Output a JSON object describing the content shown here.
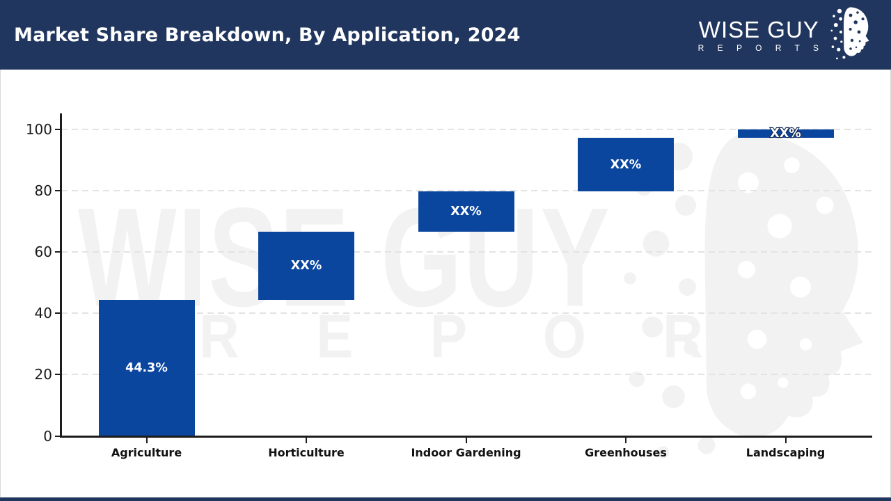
{
  "header": {
    "title": "Market Share Breakdown, By Application, 2024",
    "bg_color": "#20365f",
    "logo": {
      "line1": "WISE GUY",
      "line2": "R E P O R T S"
    }
  },
  "watermark": {
    "line1": "WISE GUY",
    "line2": "R E P O R T S"
  },
  "footer": {
    "bg_color": "#20365f"
  },
  "chart_data": {
    "type": "bar",
    "subtype": "stacked-waterfall",
    "title": "Market Share Breakdown, By Application, 2024",
    "xlabel": "",
    "ylabel": "",
    "categories": [
      "Agriculture",
      "Horticulture",
      "Indoor Gardening",
      "Greenhouses",
      "Landscaping"
    ],
    "segments": [
      {
        "category": "Agriculture",
        "start": 0,
        "end": 44.3,
        "label": "44.3%",
        "outlined": false
      },
      {
        "category": "Horticulture",
        "start": 44.3,
        "end": 66.6,
        "label": "XX%",
        "outlined": false
      },
      {
        "category": "Indoor Gardening",
        "start": 66.6,
        "end": 79.7,
        "label": "XX%",
        "outlined": false
      },
      {
        "category": "Greenhouses",
        "start": 79.7,
        "end": 97.2,
        "label": "XX%",
        "outlined": false
      },
      {
        "category": "Landscaping",
        "start": 97.2,
        "end": 100,
        "label": "XX%",
        "outlined": true
      }
    ],
    "yticks": [
      0,
      20,
      40,
      60,
      80,
      100
    ],
    "ylim": [
      0,
      105
    ],
    "grid": "horizontal dashed",
    "legend": "none",
    "bar_color": "#0b469e",
    "label_color": "#ffffff",
    "axis_color": "#1c1c1c",
    "gridline_color": "#e3e3e3"
  }
}
